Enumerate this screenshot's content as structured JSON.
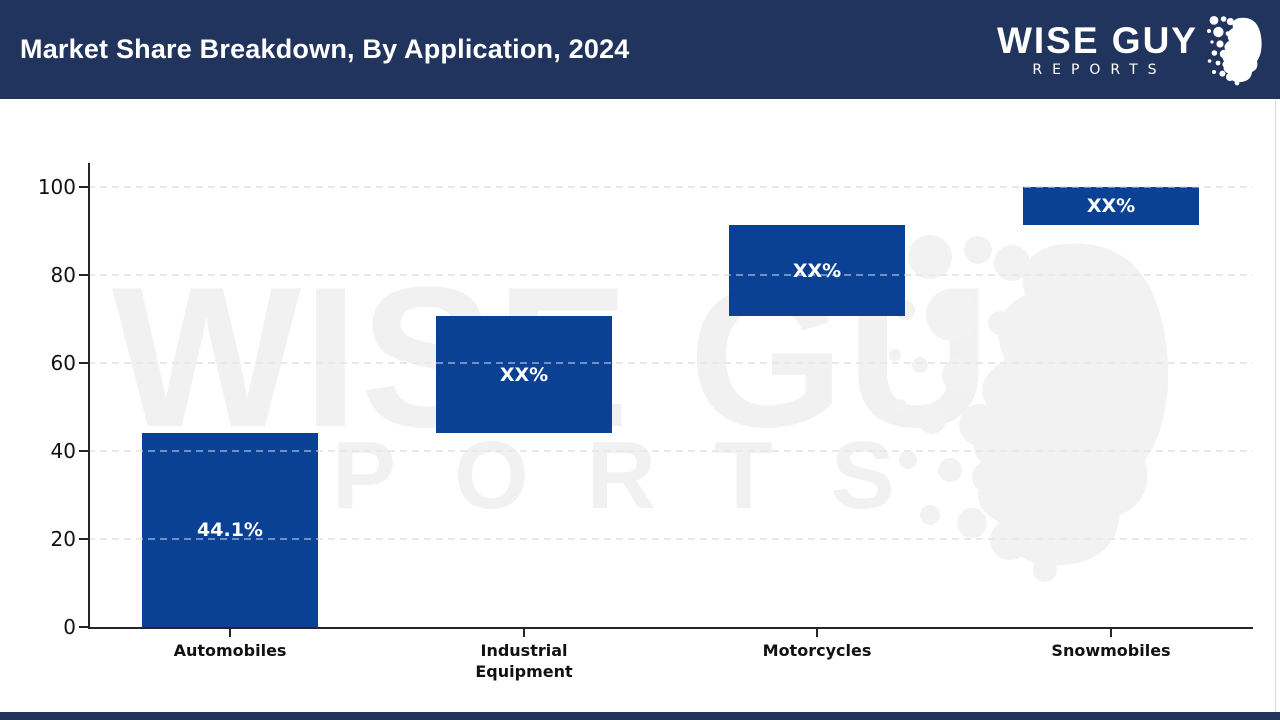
{
  "header": {
    "title": "Market Share Breakdown, By Application, 2024",
    "logo": {
      "line1": "WISE GUY",
      "line2": "REPORTS"
    }
  },
  "watermark": {
    "line1": "WISE GU",
    "line2": "EPORTS"
  },
  "colors": {
    "header_bg": "#21345e",
    "bar": "#0b4195",
    "bar_label": "#ffffff",
    "grid": "#d9d9d9",
    "axis": "#262626",
    "watermark": "#f1f1f1"
  },
  "chart_data": {
    "type": "bar",
    "subtype": "waterfall",
    "title": "Market Share Breakdown, By Application, 2024",
    "xlabel": "",
    "ylabel": "",
    "ylim": [
      0,
      100
    ],
    "yticks": [
      0,
      20,
      40,
      60,
      80,
      100
    ],
    "grid": "horizontal dashed",
    "legend": "none",
    "categories": [
      "Automobiles",
      "Industrial Equipment",
      "Motorcycles",
      "Snowmobiles"
    ],
    "category_display_lines": [
      [
        "Automobiles"
      ],
      [
        "Industrial",
        "Equipment"
      ],
      [
        "Motorcycles"
      ],
      [
        "Snowmobiles"
      ]
    ],
    "segments": [
      {
        "category": "Automobiles",
        "start": 0,
        "end": 44.1,
        "value": 44.1,
        "label": "44.1%"
      },
      {
        "category": "Industrial Equipment",
        "start": 44.1,
        "end": 70.6,
        "value": 26.5,
        "label": "XX%"
      },
      {
        "category": "Motorcycles",
        "start": 70.6,
        "end": 91.4,
        "value": 20.8,
        "label": "XX%"
      },
      {
        "category": "Snowmobiles",
        "start": 91.4,
        "end": 100,
        "value": 8.6,
        "label": "XX%"
      }
    ]
  }
}
